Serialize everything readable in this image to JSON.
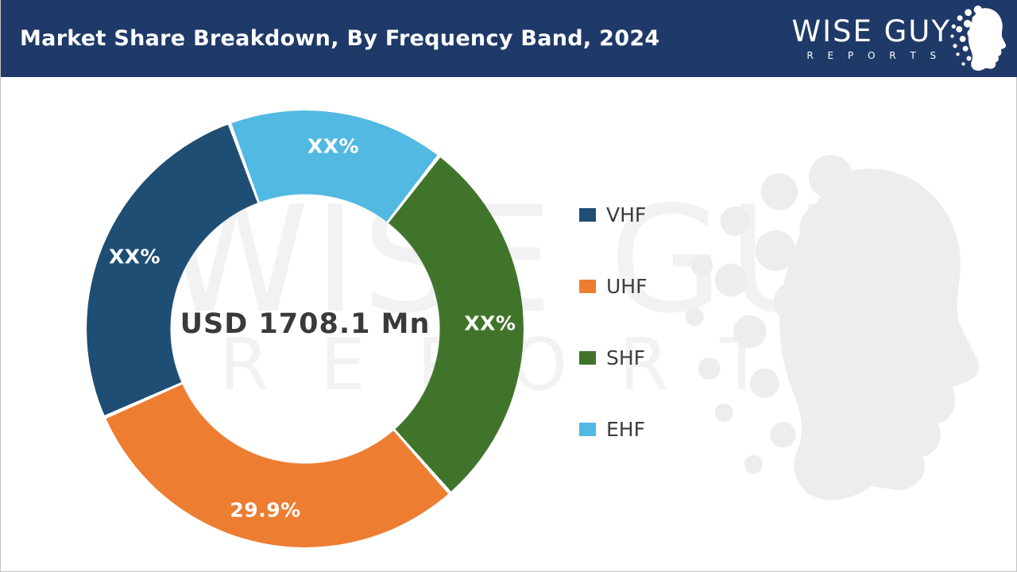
{
  "header": {
    "title": "Market Share Breakdown, By Frequency Band, 2024",
    "logo": {
      "line1": "WISE GUY",
      "line2": "R E P O R T S"
    }
  },
  "watermark": {
    "line1": "WISE GUY",
    "line2": "R E P O R T S"
  },
  "chart_data": {
    "type": "pie",
    "subtype": "donut",
    "title": "Market Share Breakdown, By Frequency Band, 2024",
    "center_label": "USD 1708.1 Mn",
    "start_angle_deg": -20.2,
    "gap_deg": 0.5,
    "segments": [
      {
        "name": "EHF",
        "display_label": "XX%",
        "percent": 16.1,
        "color": "#52b9e2"
      },
      {
        "name": "SHF",
        "display_label": "XX%",
        "percent": 28.0,
        "color": "#41742b"
      },
      {
        "name": "UHF",
        "display_label": "29.9%",
        "percent": 29.9,
        "color": "#ed7d31"
      },
      {
        "name": "VHF",
        "display_label": "XX%",
        "percent": 26.0,
        "color": "#1f4e74"
      }
    ],
    "legend_position": "right"
  },
  "legend": {
    "items": [
      {
        "label": "VHF",
        "color": "#1f4e74"
      },
      {
        "label": "UHF",
        "color": "#ed7d31"
      },
      {
        "label": "SHF",
        "color": "#41742b"
      },
      {
        "label": "EHF",
        "color": "#52b9e2"
      }
    ]
  }
}
